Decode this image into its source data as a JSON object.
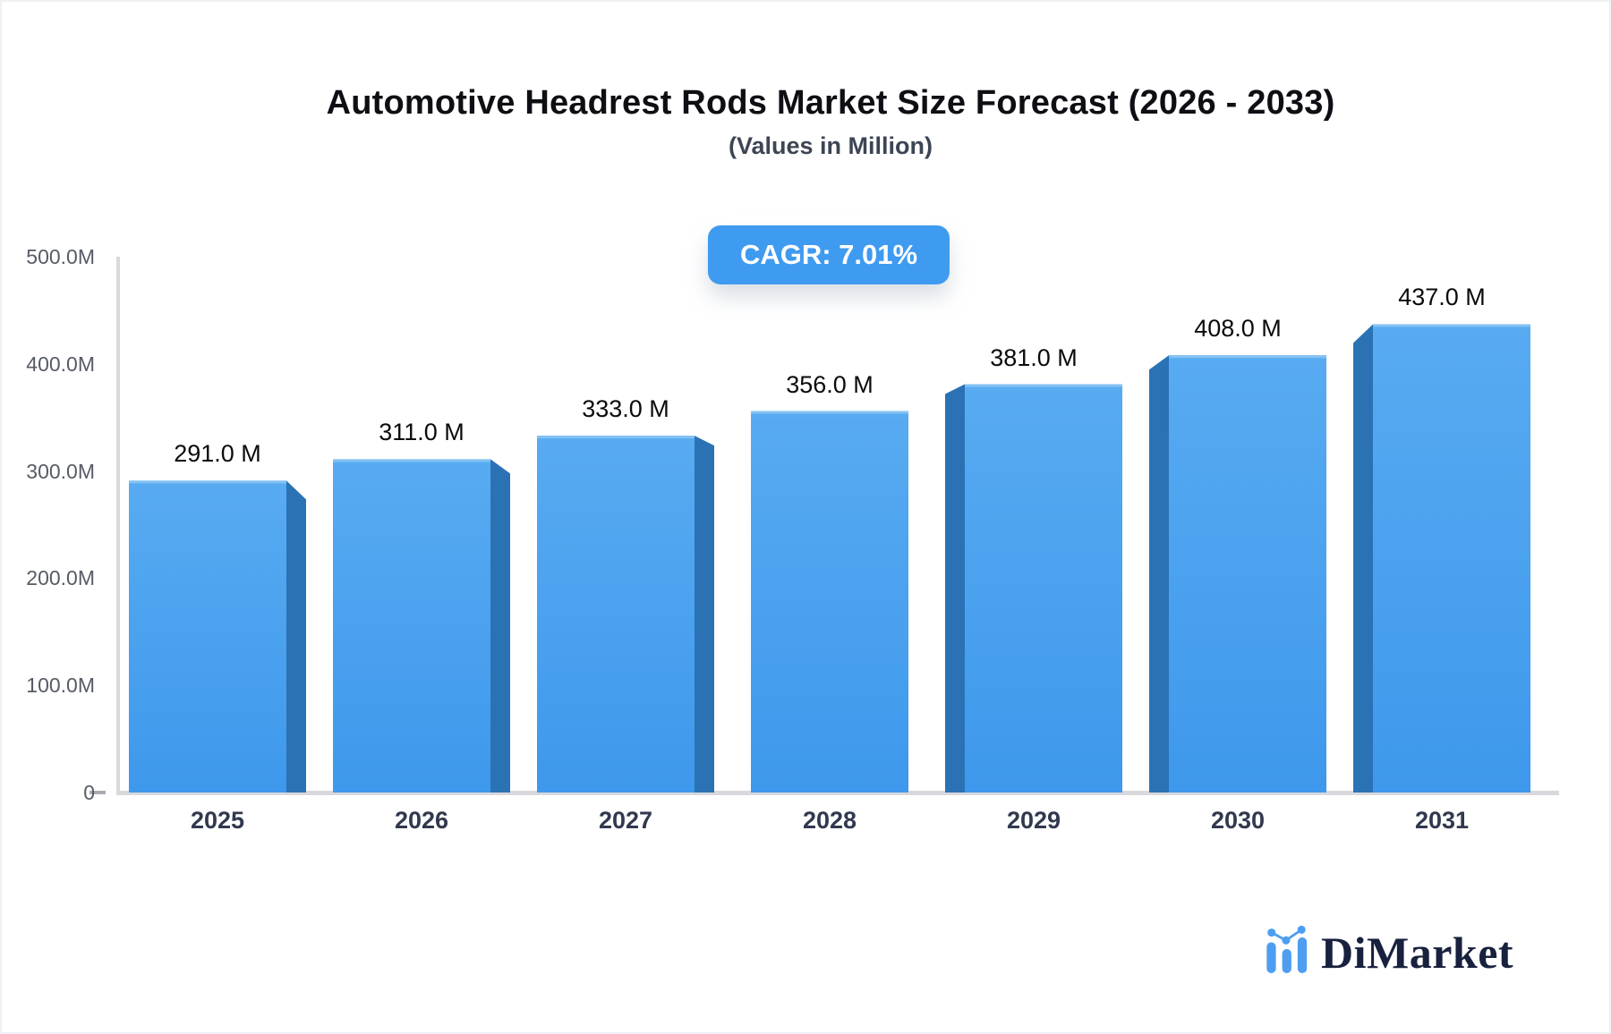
{
  "header": {
    "title": "Automotive Headrest Rods Market Size Forecast (2026 - 2033)",
    "subtitle": "(Values in Million)"
  },
  "badge": {
    "label": "CAGR: 7.01%",
    "bg": "#3e9bf0",
    "text_color": "#ffffff"
  },
  "chart_data": {
    "type": "bar",
    "title": "Automotive Headrest Rods Market Size Forecast (2026 - 2033)",
    "subtitle": "(Values in Million)",
    "categories": [
      "2025",
      "2026",
      "2027",
      "2028",
      "2029",
      "2030",
      "2031"
    ],
    "values": [
      291,
      311,
      333,
      356,
      381,
      408,
      437
    ],
    "value_labels": [
      "291.0 M",
      "311.0 M",
      "333.0 M",
      "356.0 M",
      "381.0 M",
      "408.0 M",
      "437.0 M"
    ],
    "unit": "Million",
    "cagr": "7.01%",
    "ylim": [
      0,
      500
    ],
    "yticks": [
      {
        "label": "500.0M",
        "value": 500
      },
      {
        "label": "400.0M",
        "value": 400
      },
      {
        "label": "300.0M",
        "value": 300
      },
      {
        "label": "200.0M",
        "value": 200
      },
      {
        "label": "100.0M",
        "value": 100
      },
      {
        "label": "0",
        "value": 0
      }
    ],
    "grid": false,
    "legend": "none",
    "style_3d": true,
    "bar_color_top": "#58abf1",
    "bar_color_bottom": "#3e98ec",
    "bar_highlight_color": "#84c1f5",
    "bar_side_color": "#2b72b4",
    "axis_color": "#d8d8dd",
    "zero_tick_color": "#a9aab2"
  },
  "logo": {
    "text": "DiMarket",
    "icon": "bar-chart-logo-icon",
    "color": "#18213d",
    "accent": "#4d9ef0"
  }
}
